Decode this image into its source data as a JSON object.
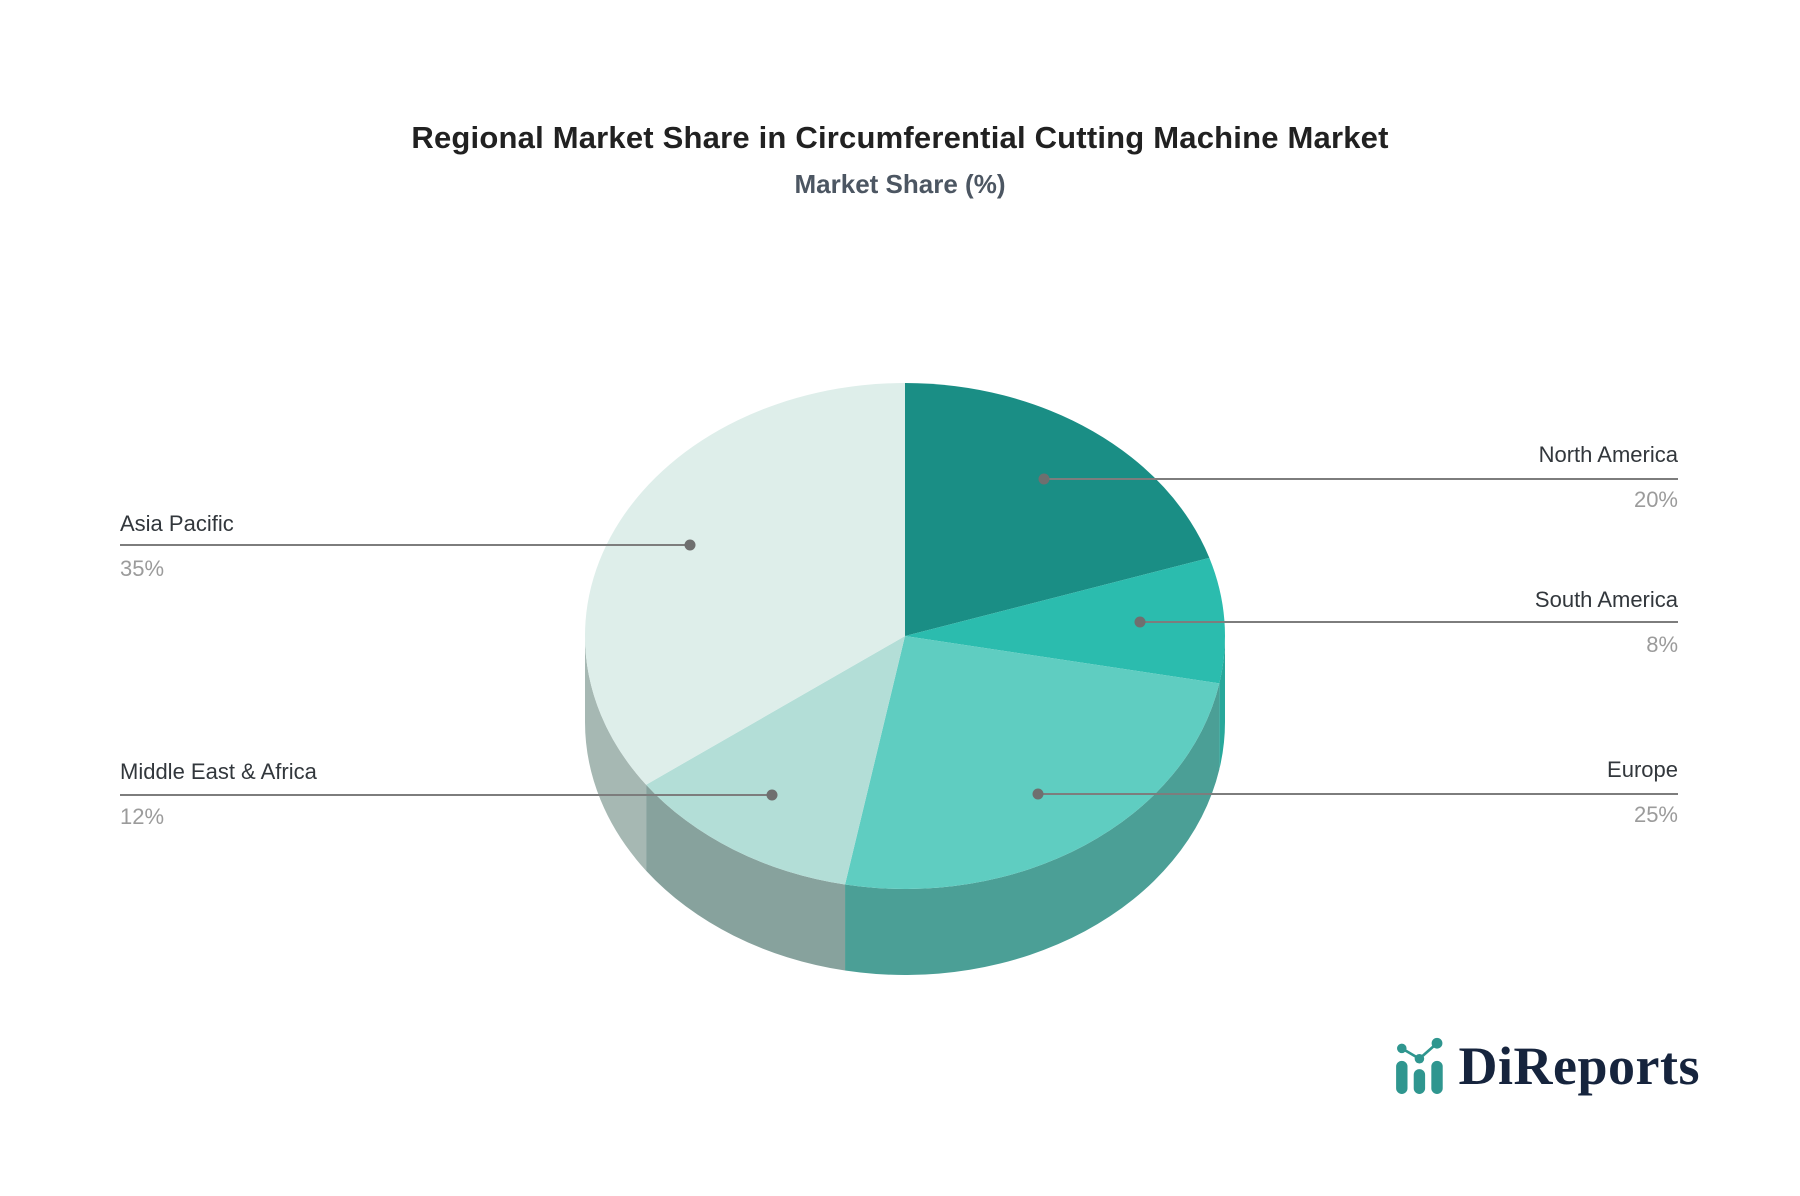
{
  "title": "Regional Market Share in Circumferential Cutting Machine Market",
  "subtitle": "Market Share (%)",
  "brand": {
    "name": "DiReports",
    "icon": "bar-line-chart-icon",
    "icon_color": "#2f968f",
    "text_color": "#16243d"
  },
  "chart_data": {
    "type": "pie",
    "style": "3d-pie",
    "title": "Regional Market Share in Circumferential Cutting Machine Market",
    "subtitle": "Market Share (%)",
    "unit": "%",
    "start_angle_deg": 0,
    "direction": "clockwise",
    "legend_position": "callout-labels",
    "segments": [
      {
        "label": "North America",
        "value": 20,
        "display": "20%",
        "color": "#1a8e85",
        "side_color": "#15776f"
      },
      {
        "label": "South America",
        "value": 8,
        "display": "8%",
        "color": "#2bbcae",
        "side_color": "#28a89b"
      },
      {
        "label": "Europe",
        "value": 25,
        "display": "25%",
        "color": "#5fcdc1",
        "side_color": "#4b9f96"
      },
      {
        "label": "Middle East & Africa",
        "value": 12,
        "display": "12%",
        "color": "#b3ded7",
        "side_color": "#87a29d"
      },
      {
        "label": "Asia Pacific",
        "value": 35,
        "display": "35%",
        "color": "#deeeea",
        "side_color": "#a6b8b3"
      }
    ],
    "label_text_color": "#32373c",
    "value_text_color": "#9b9b9b",
    "connector_color": "#7d7d7d",
    "connector_dot_color": "#6f6f6f"
  }
}
